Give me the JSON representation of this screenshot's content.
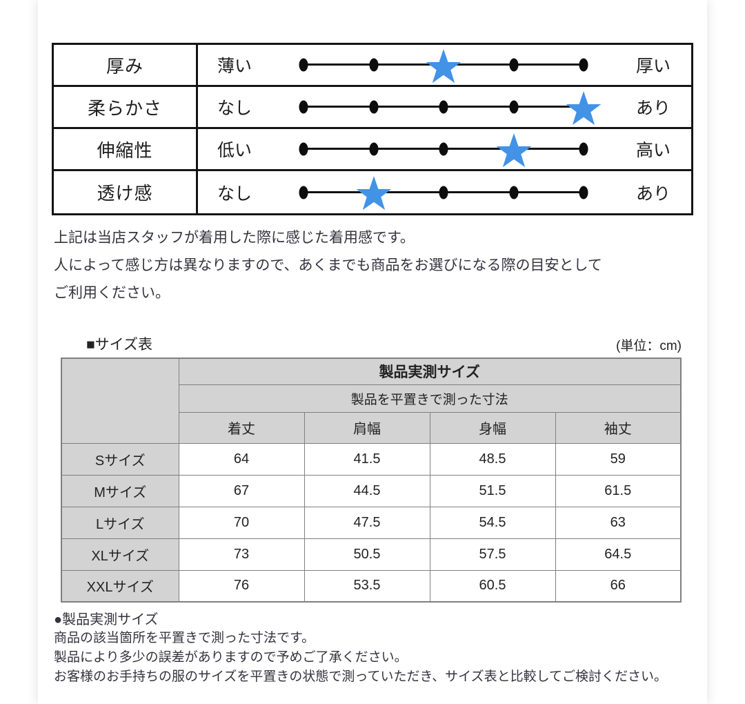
{
  "feel_table": {
    "scale_points": 5,
    "star_color": "#4292e6",
    "rows": [
      {
        "label": "厚み",
        "left": "薄い",
        "right": "厚い",
        "position": 3
      },
      {
        "label": "柔らかさ",
        "left": "なし",
        "right": "あり",
        "position": 5
      },
      {
        "label": "伸縮性",
        "left": "低い",
        "right": "高い",
        "position": 4
      },
      {
        "label": "透け感",
        "left": "なし",
        "right": "あり",
        "position": 2
      }
    ]
  },
  "top_notes": {
    "lines": [
      "上記は当店スタッフが着用した際に感じた着用感です。",
      "人によって感じ方は異なりますので、あくまでも商品をお選びになる際の目安として",
      "ご利用ください。"
    ]
  },
  "size_section": {
    "title": "■サイズ表",
    "unit": "(単位：cm)",
    "table": {
      "header1": "製品実測サイズ",
      "header2": "製品を平置きで測った寸法",
      "columns": [
        "着丈",
        "肩幅",
        "身幅",
        "袖丈"
      ],
      "rows": [
        {
          "label": "Sサイズ",
          "values": [
            "64",
            "41.5",
            "48.5",
            "59"
          ]
        },
        {
          "label": "Mサイズ",
          "values": [
            "67",
            "44.5",
            "51.5",
            "61.5"
          ]
        },
        {
          "label": "Lサイズ",
          "values": [
            "70",
            "47.5",
            "54.5",
            "63"
          ]
        },
        {
          "label": "XLサイズ",
          "values": [
            "73",
            "50.5",
            "57.5",
            "64.5"
          ]
        },
        {
          "label": "XXLサイズ",
          "values": [
            "76",
            "53.5",
            "60.5",
            "66"
          ]
        }
      ]
    }
  },
  "bottom_notes": {
    "heading": "●製品実測サイズ",
    "lines": [
      "商品の該当箇所を平置きで測った寸法です。",
      "製品により多少の誤差がありますので予めご了承ください。",
      "お客様のお手持ちの服のサイズを平置きの状態で測っていただき、サイズ表と比較してご検討ください。"
    ]
  },
  "colors": {
    "star_blue": "#4292e6",
    "header_gray": "#d3d3d3",
    "size_table_border": "#7f7f7f",
    "feel_table_border": "#141414"
  }
}
